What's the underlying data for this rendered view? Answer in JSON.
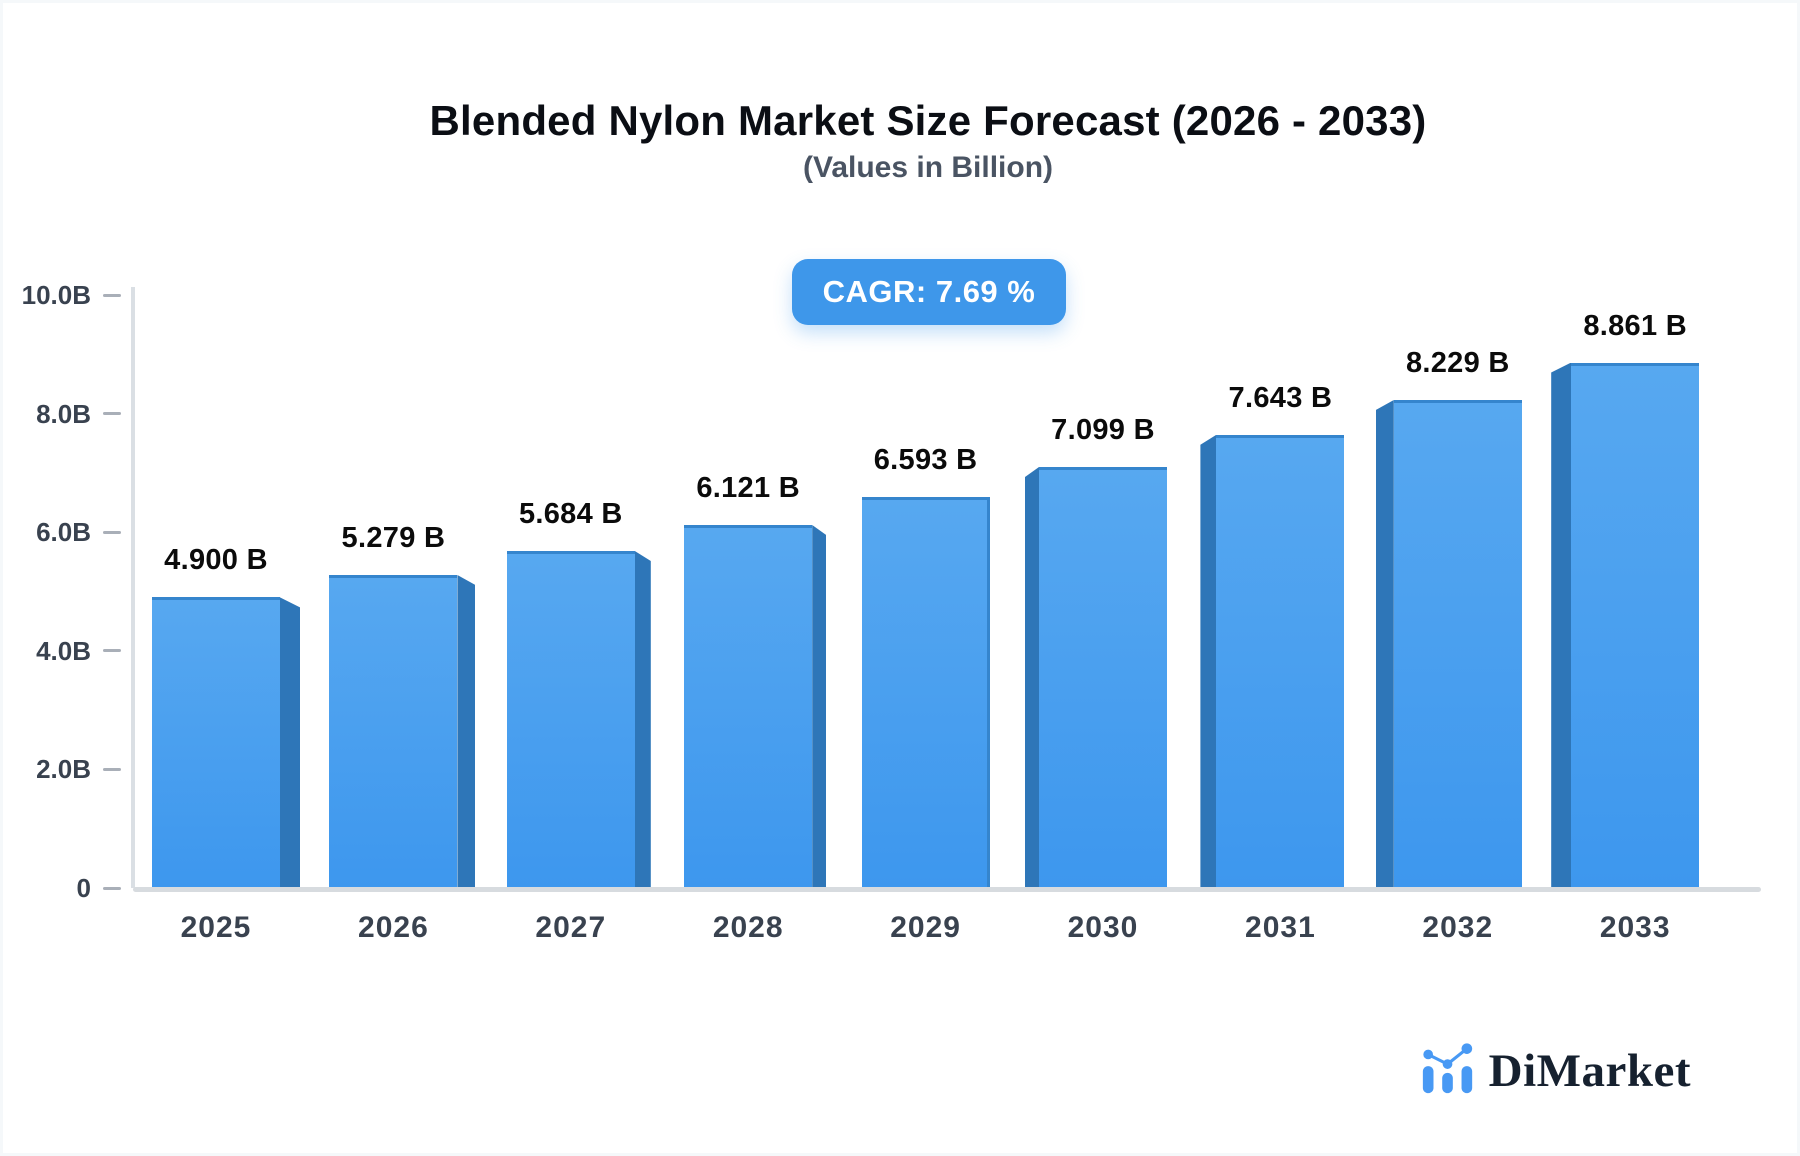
{
  "header": {
    "title": "Blended Nylon Market Size Forecast (2026 - 2033)",
    "subtitle": "(Values in Billion)"
  },
  "badge": {
    "label": "CAGR: 7.69 %"
  },
  "brand": {
    "name": "DiMarket",
    "icon": "bar-line-chart-icon"
  },
  "colors": {
    "accent_blue": "#3e97ea",
    "bar_face_top": "#57a8f0",
    "bar_face_bottom": "#3d97ee",
    "bar_edge": "#3585cd",
    "bar_side": "#2e76b8",
    "axis_line": "#dadfe4",
    "baseline": "#d7dbdf",
    "tick_dash": "#a9afb8",
    "axis_text": "#39424f",
    "value_text": "#0b0b0b",
    "title_text": "#0b0e14",
    "subtitle_text": "#4a5463",
    "badge_bg": "#3e97ea",
    "badge_text": "#ffffff",
    "logo_blue": "#4899f4",
    "logo_text": "#16212f"
  },
  "chart_data": {
    "type": "bar",
    "title": "Blended Nylon Market Size Forecast (2026 - 2033)",
    "subtitle": "(Values in Billion)",
    "unit": "Billion",
    "categories": [
      "2025",
      "2026",
      "2027",
      "2028",
      "2029",
      "2030",
      "2031",
      "2032",
      "2033"
    ],
    "values": [
      4.9,
      5.279,
      5.684,
      6.121,
      6.593,
      7.099,
      7.643,
      8.229,
      8.861
    ],
    "value_labels": [
      "4.900 B",
      "5.279 B",
      "5.684 B",
      "6.121 B",
      "6.593 B",
      "7.099 B",
      "7.643 B",
      "8.229 B",
      "8.861 B"
    ],
    "xlabel": "",
    "ylabel": "",
    "ylim": [
      0,
      10
    ],
    "y_ticks": [
      {
        "value": 0,
        "label": "0"
      },
      {
        "value": 2,
        "label": "2.0B"
      },
      {
        "value": 4,
        "label": "4.0B"
      },
      {
        "value": 6,
        "label": "6.0B"
      },
      {
        "value": 8,
        "label": "8.0B"
      },
      {
        "value": 10,
        "label": "10.0B"
      }
    ],
    "cagr_percent": 7.69,
    "grid": false,
    "legend": false,
    "style_3d": true,
    "perspective_center_index": 4
  }
}
